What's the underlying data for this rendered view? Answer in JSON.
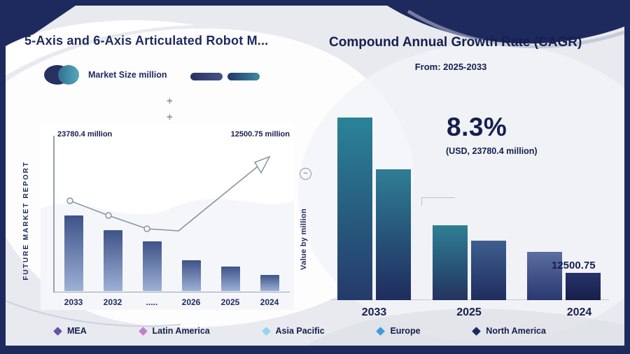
{
  "page": {
    "bg": "#e8eaef",
    "frame_color": "#1e2a5e",
    "navy": "#1e2a5e",
    "teal": "#2e8096"
  },
  "left_panel": {
    "title": "5-Axis and 6-Axis Articulated Robot M...",
    "legend_label": "Market Size million",
    "watermark": "FUTURE MARKET REPORT",
    "plus_top": "+",
    "plus_bottom": "+",
    "minus_glyph": "−",
    "value_axis_label": "Value by million"
  },
  "right_panel": {
    "title": "Compound Annual Growth Rate (CAGR)",
    "subtitle": "From: 2025-2033",
    "cagr_value": "8.3%",
    "cagr_detail": "(USD, 23780.4 million)",
    "value_callout": "12500.75"
  },
  "chart_data": [
    {
      "type": "bar",
      "name": "market-size-trend",
      "title": "Market Size million",
      "ylabel": "Value by million",
      "categories": [
        "2033",
        "2032",
        ".....",
        "2026",
        "2025",
        "2024"
      ],
      "values": [
        100,
        81,
        66,
        41,
        32,
        21
      ],
      "values_note": "relative bar heights in %, axis unlabeled",
      "label_left": "23780.4 million",
      "label_right": "12500.75 million",
      "bar_gradient": [
        "#3e5388",
        "#9db0d6"
      ],
      "overlay": "declining marker line then rising arrow"
    },
    {
      "type": "bar",
      "name": "cagr-comparison",
      "title": "Compound Annual Growth Rate (CAGR)",
      "subtitle": "From: 2025-2033",
      "cagr": "8.3%",
      "cagr_detail": "(USD, 23780.4 million)",
      "callout": "12500.75",
      "values_note": "relative bar heights in %, two bars per year group",
      "groups": [
        {
          "label": "2033",
          "bars": [
            {
              "value": 95,
              "from": "#2a8398",
              "to": "#253a69"
            },
            {
              "value": 68,
              "from": "#2f7e95",
              "to": "#1f2c5e"
            }
          ]
        },
        {
          "label": "2025",
          "bars": [
            {
              "value": 39,
              "from": "#2f7f95",
              "to": "#24335f"
            },
            {
              "value": 31,
              "from": "#3d5f8e",
              "to": "#1f2c5e"
            }
          ]
        },
        {
          "label": "2024",
          "bars": [
            {
              "value": 25,
              "from": "#5b6da1",
              "to": "#2a3870"
            },
            {
              "value": 14,
              "from": "#28336b",
              "to": "#161f49"
            }
          ]
        }
      ]
    }
  ],
  "footer_legend": [
    {
      "label": "MEA",
      "color": "#6a52aa"
    },
    {
      "label": "Latin America",
      "color": "#c47fd0"
    },
    {
      "label": "Asia Pacific",
      "color": "#8fd4f0"
    },
    {
      "label": "Europe",
      "color": "#3f9cd8"
    },
    {
      "label": "North America",
      "color": "#1e2a5e"
    }
  ]
}
